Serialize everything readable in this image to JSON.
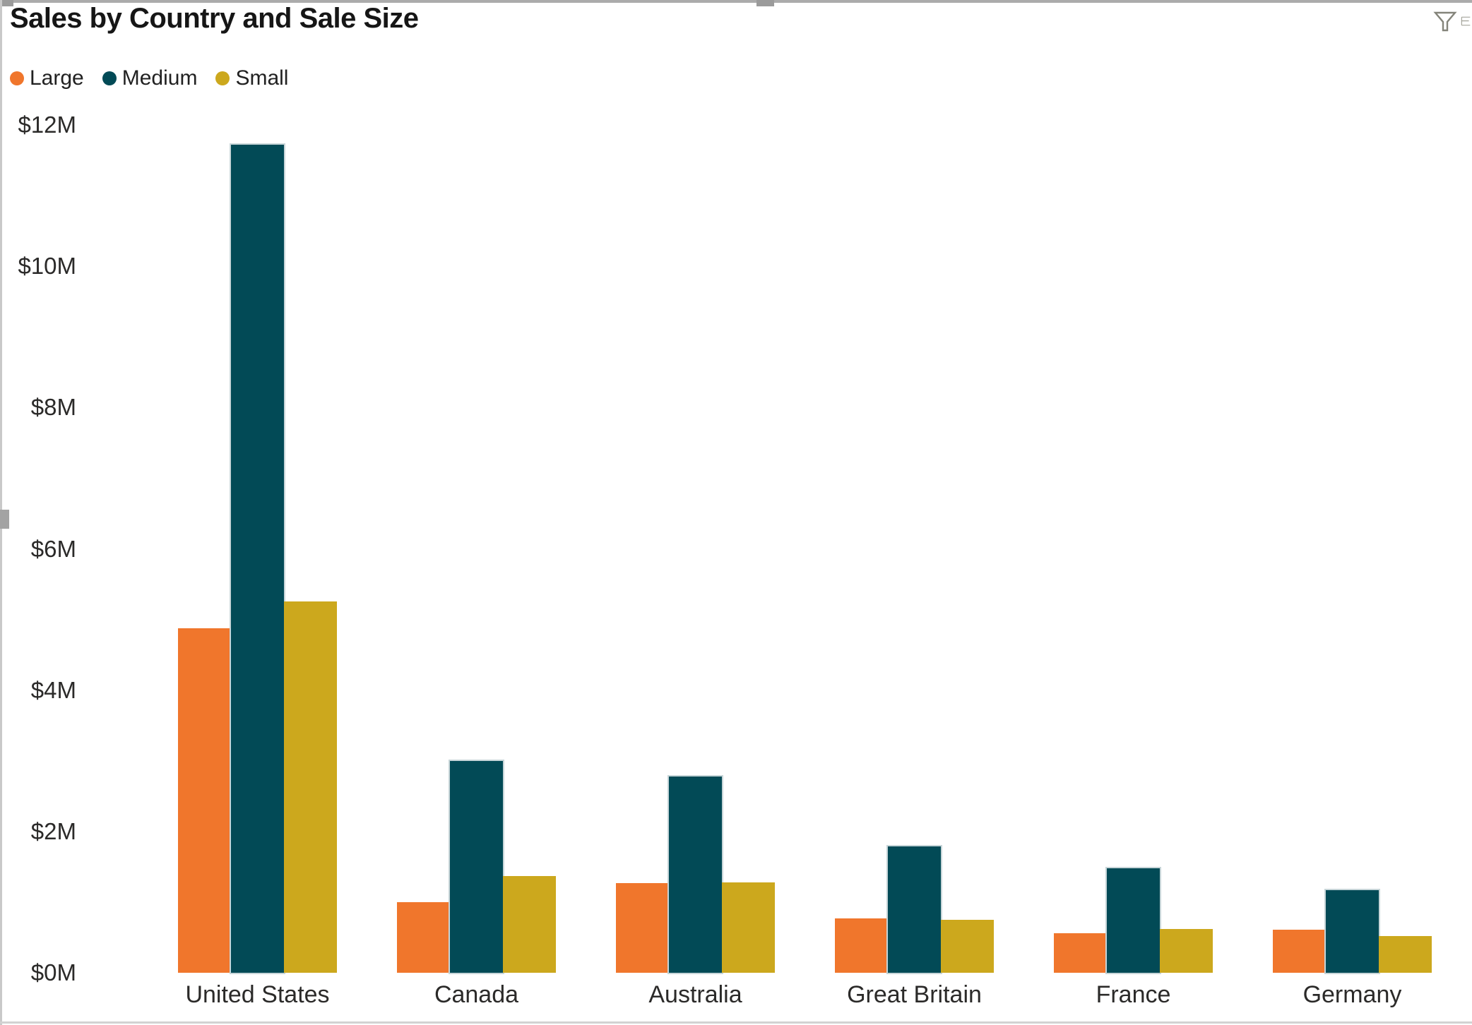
{
  "title": "Sales by Country and Sale Size",
  "toolbar": {
    "icons": [
      {
        "name": "filter-funnel",
        "state": "visible"
      },
      {
        "name": "more-options",
        "state": "clipped-at-right-edge"
      }
    ]
  },
  "legend": {
    "position": "top-left",
    "items": [
      "Large",
      "Medium",
      "Small"
    ]
  },
  "y_axis": {
    "ticks": [
      {
        "label": "$12M",
        "value": 12
      },
      {
        "label": "$10M",
        "value": 10
      },
      {
        "label": "$8M",
        "value": 8
      },
      {
        "label": "$6M",
        "value": 6
      },
      {
        "label": "$4M",
        "value": 4
      },
      {
        "label": "$2M",
        "value": 2
      },
      {
        "label": "$0M",
        "value": 0
      }
    ]
  },
  "chart_data": {
    "type": "bar",
    "title": "Sales by Country and Sale Size",
    "categories": [
      "United States",
      "Canada",
      "Australia",
      "Great Britain",
      "France",
      "Germany"
    ],
    "series": [
      {
        "name": "Large",
        "color": "#F0762C",
        "values": [
          4.88,
          1.0,
          1.27,
          0.77,
          0.56,
          0.61
        ]
      },
      {
        "name": "Medium",
        "color": "#024A56",
        "values": [
          11.72,
          3.0,
          2.78,
          1.79,
          1.48,
          1.17
        ]
      },
      {
        "name": "Small",
        "color": "#CCA81D",
        "values": [
          5.26,
          1.37,
          1.28,
          0.75,
          0.62,
          0.52
        ]
      }
    ],
    "xlabel": "",
    "ylabel": "",
    "ylim": [
      0,
      12
    ],
    "yunit": "millions USD",
    "grid": false,
    "legend_position": "top-left"
  },
  "colors": {
    "large": "#F0762C",
    "medium": "#024A56",
    "small": "#CCA81D",
    "text": "#252423",
    "chrome_gray": "#9b9b9b"
  }
}
